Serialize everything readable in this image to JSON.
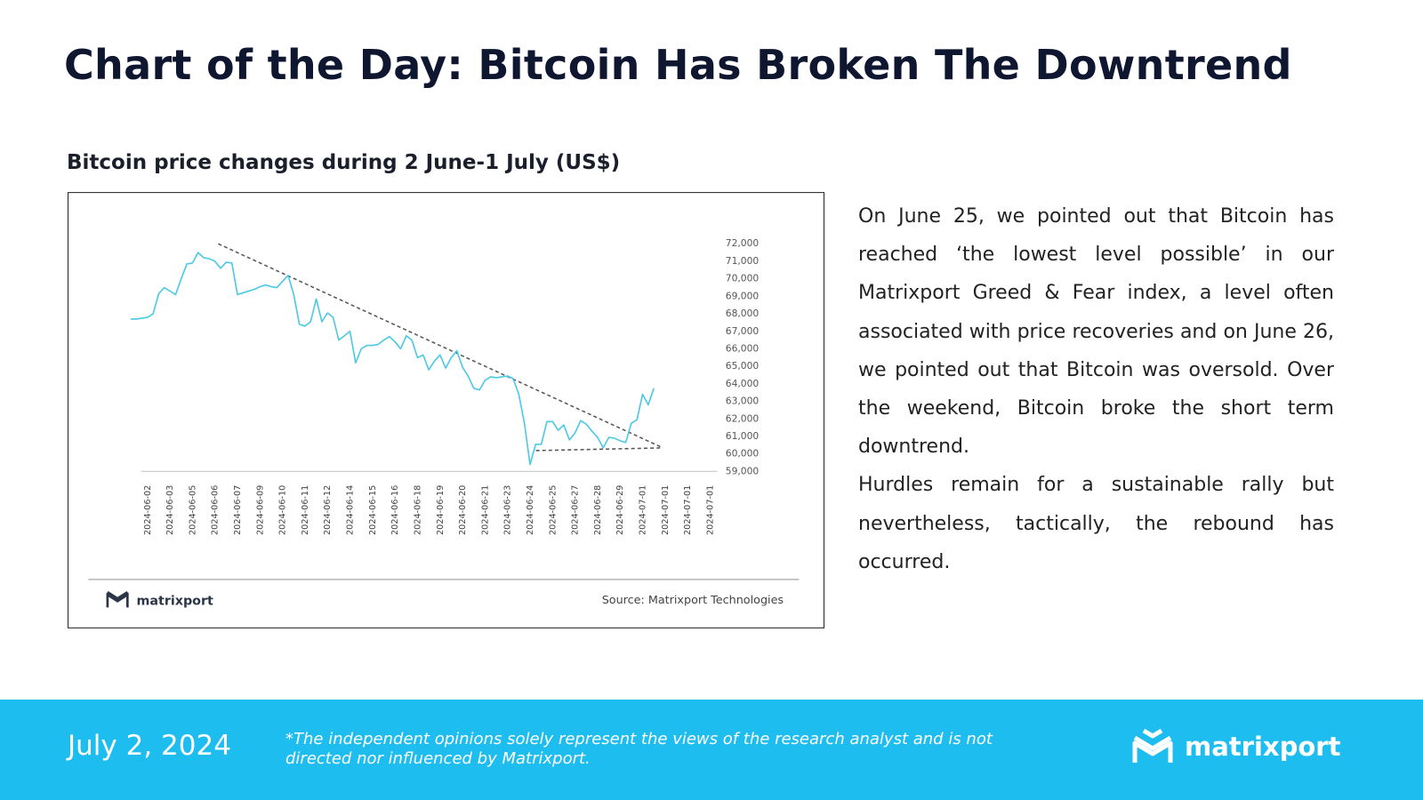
{
  "header": {
    "title": "Chart of the Day: Bitcoin Has Broken The Downtrend"
  },
  "chart_data": {
    "type": "line",
    "title": "Bitcoin price changes during 2 June-1 July (US$)",
    "categories": [
      null,
      null,
      null,
      "2024-06-02",
      null,
      null,
      null,
      "2024-06-03",
      null,
      null,
      null,
      "2024-06-05",
      null,
      null,
      null,
      "2024-06-06",
      null,
      null,
      null,
      "2024-06-07",
      null,
      null,
      null,
      "2024-06-09",
      null,
      null,
      null,
      "2024-06-10",
      null,
      null,
      null,
      "2024-06-11",
      null,
      null,
      null,
      "2024-06-12",
      null,
      null,
      null,
      "2024-06-14",
      null,
      null,
      null,
      "2024-06-15",
      null,
      null,
      null,
      "2024-06-16",
      null,
      null,
      null,
      "2024-06-18",
      null,
      null,
      null,
      "2024-06-19",
      null,
      null,
      null,
      "2024-06-20",
      null,
      null,
      null,
      "2024-06-21",
      null,
      null,
      null,
      "2024-06-23",
      null,
      null,
      null,
      "2024-06-24",
      null,
      null,
      null,
      "2024-06-25",
      null,
      null,
      null,
      "2024-06-27",
      null,
      null,
      null,
      "2024-06-28",
      null,
      null,
      null,
      "2024-06-29",
      null,
      null,
      null,
      "2024-07-01",
      null,
      null,
      null,
      "2024-07-01",
      null,
      null,
      null,
      "2024-07-01",
      null,
      null,
      null,
      "2024-07-01"
    ],
    "values": [
      67700,
      67700,
      67750,
      67800,
      68000,
      69150,
      69500,
      69300,
      69100,
      70000,
      70850,
      70900,
      71500,
      71200,
      71150,
      71000,
      70600,
      70950,
      70900,
      69100,
      69200,
      69300,
      69400,
      69550,
      69650,
      69550,
      69500,
      69850,
      70200,
      69100,
      67400,
      67300,
      67550,
      68850,
      67550,
      68050,
      67800,
      66500,
      66750,
      67000,
      65200,
      66000,
      66200,
      66200,
      66250,
      66500,
      66700,
      66400,
      66000,
      66750,
      66500,
      65500,
      65650,
      64800,
      65300,
      65650,
      64900,
      65500,
      65900,
      64950,
      64450,
      63750,
      63650,
      64200,
      64400,
      64350,
      64400,
      64450,
      64300,
      63400,
      61750,
      59400,
      60550,
      60550,
      61850,
      61850,
      61350,
      61650,
      60800,
      61200,
      61900,
      61700,
      61300,
      60950,
      60350,
      60950,
      60900,
      60750,
      60650,
      61750,
      61950,
      63400,
      62800,
      63750,
      null,
      null,
      null,
      null,
      null,
      null,
      null,
      null,
      null,
      null
    ],
    "color": "#4cc9e4",
    "ylim": [
      59000,
      72000
    ],
    "yticks": [
      {
        "value": 59000,
        "label": "59,000"
      },
      {
        "value": 60000,
        "label": "60,000"
      },
      {
        "value": 61000,
        "label": "61,000"
      },
      {
        "value": 62000,
        "label": "62,000"
      },
      {
        "value": 63000,
        "label": "63,000"
      },
      {
        "value": 64000,
        "label": "64,000"
      },
      {
        "value": 65000,
        "label": "65,000"
      },
      {
        "value": 66000,
        "label": "66,000"
      },
      {
        "value": 67000,
        "label": "67,000"
      },
      {
        "value": 68000,
        "label": "68,000"
      },
      {
        "value": 69000,
        "label": "69,000"
      },
      {
        "value": 70000,
        "label": "70,000"
      },
      {
        "value": 71000,
        "label": "71,000"
      },
      {
        "value": 72000,
        "label": "72,000"
      }
    ],
    "grid": false,
    "source": "Source: Matrixport Technologies",
    "logo_text": "matrixport"
  },
  "commentary": {
    "paragraphs": [
      "On June 25, we pointed out that Bitcoin has reached ‘the lowest level possible’ in our Matrixport Greed & Fear index, a level often associated with price recoveries and on June 26, we pointed out that Bitcoin was oversold. Over the weekend, Bitcoin broke the short term downtrend.",
      "Hurdles remain for a sustainable rally but nevertheless, tactically, the rebound has occurred."
    ]
  },
  "footer": {
    "date": "July 2, 2024",
    "disclaimer": "*The independent opinions solely represent the views of the research analyst and is not directed nor influenced by Matrixport.",
    "brand": "matrixport"
  }
}
